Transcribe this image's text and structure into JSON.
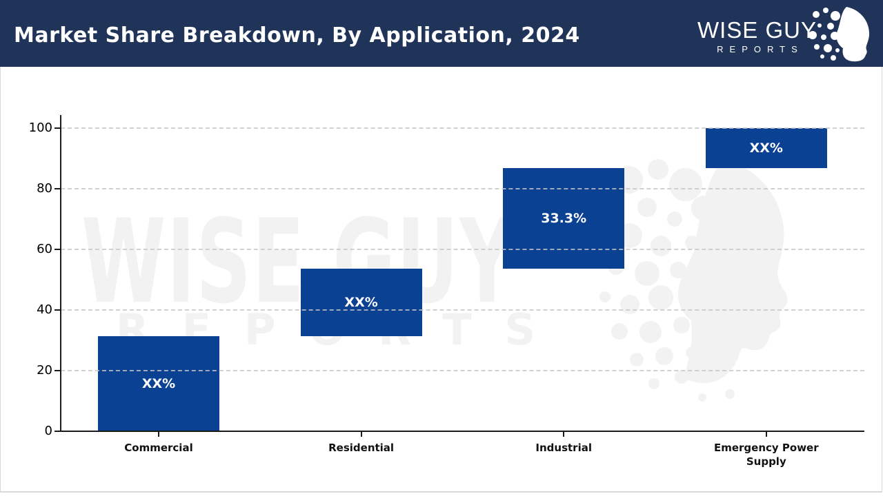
{
  "header": {
    "title": "Market Share Breakdown, By Application, 2024",
    "logo": {
      "line1": "WISE GUY",
      "line2": "REPORTS"
    }
  },
  "watermark": {
    "line1": "WISE GUY",
    "line2": "REPORTS"
  },
  "colors": {
    "header_bg": "#203459",
    "bar_fill": "#0b4193",
    "bar_label_text": "#ffffff",
    "gridline": "#c6c6c6",
    "axis": "#1a1a1a",
    "watermark": "#f2f2f2"
  },
  "chart_data": {
    "type": "bar",
    "subtype": "floating-waterfall",
    "title": "Market Share Breakdown, By Application, 2024",
    "categories": [
      "Commercial",
      "Residential",
      "Industrial",
      "Emergency Power Supply"
    ],
    "bars": [
      {
        "category": "Commercial",
        "start": 0,
        "end": 31.4,
        "label": "XX%"
      },
      {
        "category": "Residential",
        "start": 31.4,
        "end": 53.6,
        "label": "XX%"
      },
      {
        "category": "Industrial",
        "start": 53.6,
        "end": 86.9,
        "label": "33.3%"
      },
      {
        "category": "Emergency Power Supply",
        "start": 86.9,
        "end": 100,
        "label": "XX%"
      }
    ],
    "xlabel": "",
    "ylabel": "",
    "ylim": [
      0,
      100
    ],
    "yticks": [
      0,
      20,
      40,
      60,
      80,
      100
    ],
    "grid": "horizontal-dashed",
    "legend": "none"
  }
}
